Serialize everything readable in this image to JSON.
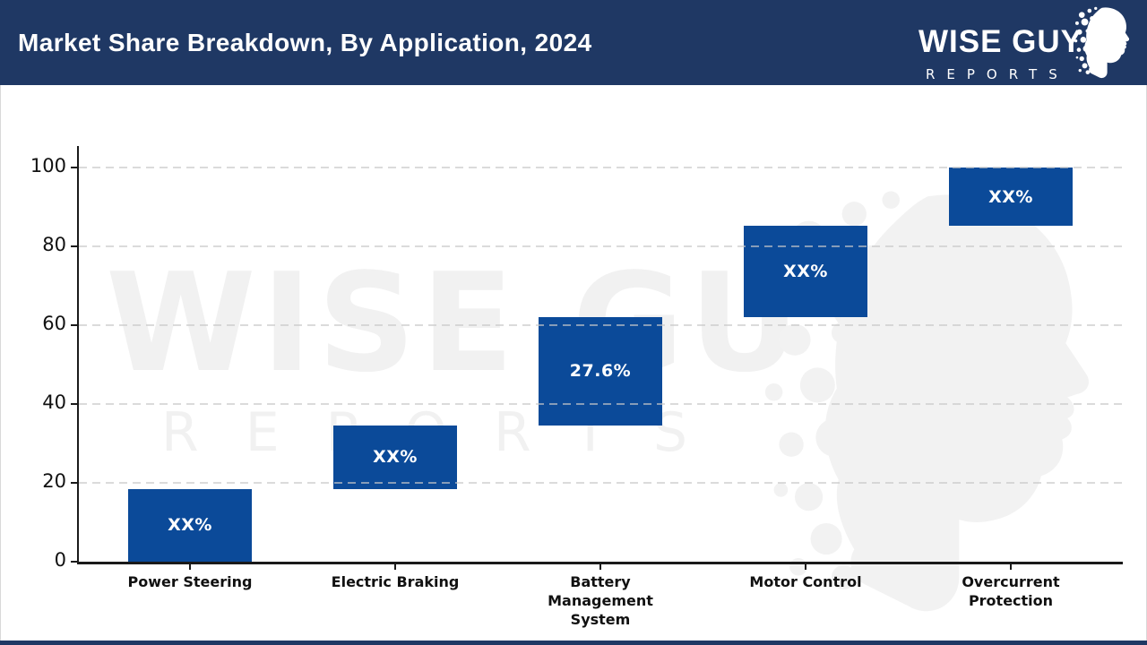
{
  "header": {
    "title": "Market Share Breakdown, By Application, 2024",
    "logo": {
      "name": "WISE GUY",
      "tagline": "REPORTS",
      "icon": "wiseguy-head-icon"
    }
  },
  "watermark": {
    "line1": "WISE GUY",
    "line2": "REPORTS"
  },
  "chart_data": {
    "type": "bar",
    "subtype": "floating-waterfall",
    "title": "Market Share Breakdown, By Application, 2024",
    "xlabel": "",
    "ylabel": "",
    "ylim": [
      0,
      105
    ],
    "yticks": [
      0,
      20,
      40,
      60,
      80,
      100
    ],
    "grid": "horizontal-dashed",
    "legend": "none",
    "categories": [
      "Power Steering",
      "Electric Braking",
      "Battery Management System",
      "Motor Control",
      "Overcurrent Protection"
    ],
    "bars": [
      {
        "category": "Power Steering",
        "start": 0,
        "end": 18.5,
        "label": "XX%"
      },
      {
        "category": "Electric Braking",
        "start": 18.5,
        "end": 34.5,
        "label": "XX%"
      },
      {
        "category": "Battery Management System",
        "start": 34.5,
        "end": 62.1,
        "label": "27.6%"
      },
      {
        "category": "Motor Control",
        "start": 62.1,
        "end": 85.2,
        "label": "XX%"
      },
      {
        "category": "Overcurrent Protection",
        "start": 85.2,
        "end": 100,
        "label": "XX%"
      }
    ]
  },
  "colors": {
    "header_bg": "#1f3864",
    "footer_bg": "#1f3864",
    "bar": "#0b4a99",
    "value_label": "#ffffff",
    "watermark": "#f1f1f1",
    "axis": "#1a1a1a",
    "grid": "#dddddd",
    "tick_text": "#111111"
  }
}
